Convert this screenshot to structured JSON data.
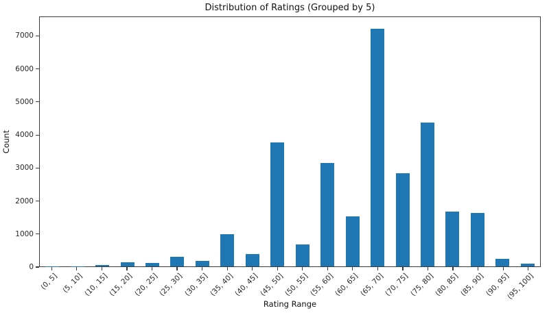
{
  "figure": {
    "kind": "matplotlib-bar-chart"
  },
  "chart_data": {
    "type": "bar",
    "title": "Distribution of Ratings (Grouped by 5)",
    "xlabel": "Rating Range",
    "ylabel": "Count",
    "categories": [
      "(0, 5]",
      "(5, 10]",
      "(10, 15]",
      "(15, 20]",
      "(20, 25]",
      "(25, 30]",
      "(30, 35]",
      "(35, 40]",
      "(40, 45]",
      "(45, 50]",
      "(50, 55]",
      "(55, 60]",
      "(60, 65]",
      "(65, 70]",
      "(70, 75]",
      "(75, 80]",
      "(80, 85]",
      "(85, 90]",
      "(90, 95]",
      "(95, 100]"
    ],
    "values": [
      2,
      5,
      40,
      120,
      100,
      290,
      170,
      980,
      370,
      3770,
      670,
      3140,
      1515,
      7230,
      2830,
      4370,
      1660,
      1630,
      235,
      75
    ],
    "yticks": [
      0,
      1000,
      2000,
      3000,
      4000,
      5000,
      6000,
      7000
    ],
    "ylim": [
      0,
      7590
    ],
    "bar_color": "#1f77b4",
    "grid": false,
    "legend": "none",
    "x_tick_rotation": 45
  }
}
